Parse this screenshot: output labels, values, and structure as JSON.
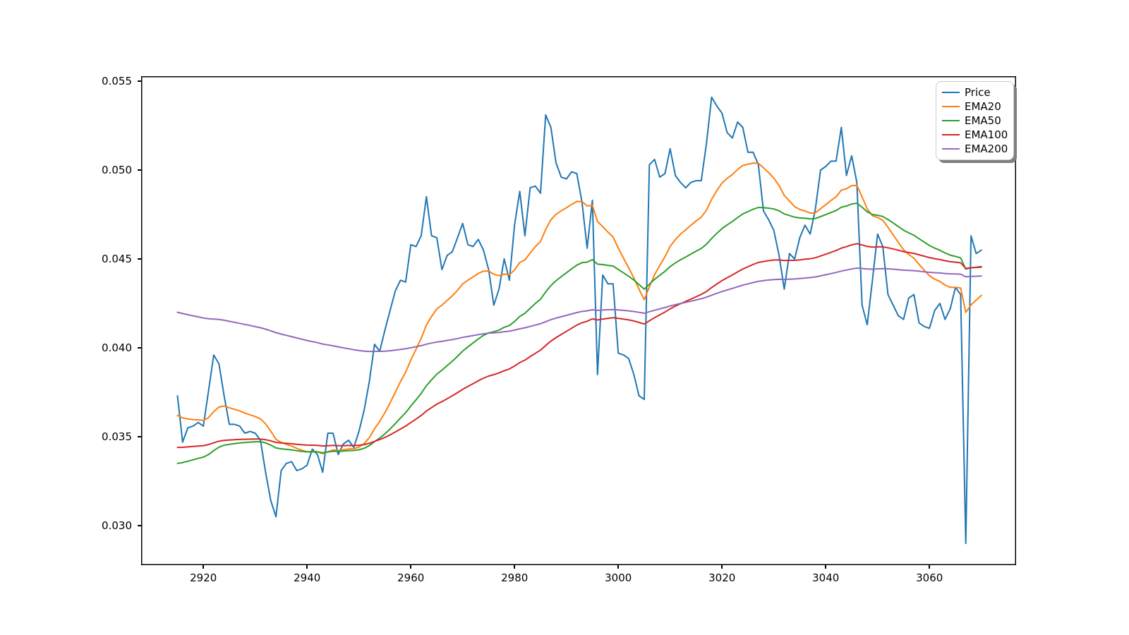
{
  "chart_data": {
    "type": "line",
    "x_start": 2915,
    "x_step": 1,
    "xlim": [
      2908.0,
      3076.7
    ],
    "ylim": [
      0.027778,
      0.055278
    ],
    "x_ticks": [
      2920,
      2940,
      2960,
      2980,
      3000,
      3020,
      3040,
      3060
    ],
    "x_tick_labels": [
      "2920",
      "2940",
      "2960",
      "2980",
      "3000",
      "3020",
      "3040",
      "3060"
    ],
    "y_ticks": [
      0.03,
      0.035,
      0.04,
      0.045,
      0.05,
      0.055
    ],
    "y_tick_labels": [
      "0.030",
      "0.035",
      "0.040",
      "0.045",
      "0.050",
      "0.055"
    ],
    "grid": false,
    "legend": {
      "position": "upper right"
    },
    "colors": {
      "background": "#ffffff",
      "axis": "#000000",
      "legend_border": "#cccccc",
      "legend_shadow": "#7f7f7f"
    },
    "series": [
      {
        "name": "Price",
        "color": "#1f77b4",
        "values": [
          0.0373,
          0.0347,
          0.0355,
          0.0356,
          0.0358,
          0.0356,
          0.0376,
          0.0396,
          0.0391,
          0.0373,
          0.0357,
          0.0357,
          0.0356,
          0.0352,
          0.0353,
          0.0352,
          0.0348,
          0.033,
          0.0314,
          0.0305,
          0.0331,
          0.0335,
          0.0336,
          0.0331,
          0.0332,
          0.0334,
          0.0343,
          0.034,
          0.033,
          0.0352,
          0.0352,
          0.034,
          0.0346,
          0.0348,
          0.0344,
          0.0353,
          0.0365,
          0.0381,
          0.0402,
          0.0398,
          0.041,
          0.0421,
          0.0432,
          0.0438,
          0.0437,
          0.0458,
          0.0457,
          0.0463,
          0.0485,
          0.0463,
          0.0462,
          0.0444,
          0.0452,
          0.0454,
          0.0462,
          0.047,
          0.0458,
          0.0457,
          0.0461,
          0.0455,
          0.0444,
          0.0424,
          0.0433,
          0.045,
          0.0438,
          0.0469,
          0.0488,
          0.0463,
          0.049,
          0.0491,
          0.0487,
          0.0531,
          0.0524,
          0.0504,
          0.0496,
          0.0495,
          0.0499,
          0.0498,
          0.0482,
          0.0456,
          0.0483,
          0.0385,
          0.0441,
          0.0436,
          0.0436,
          0.0397,
          0.0396,
          0.0394,
          0.0385,
          0.0373,
          0.0371,
          0.0503,
          0.0506,
          0.0496,
          0.0498,
          0.0512,
          0.0497,
          0.0493,
          0.049,
          0.0493,
          0.0494,
          0.0494,
          0.0515,
          0.0541,
          0.0536,
          0.0532,
          0.0521,
          0.0518,
          0.0527,
          0.0524,
          0.051,
          0.051,
          0.0503,
          0.0477,
          0.0472,
          0.0466,
          0.0452,
          0.0433,
          0.0453,
          0.045,
          0.0462,
          0.0469,
          0.0464,
          0.0478,
          0.05,
          0.0502,
          0.0505,
          0.0505,
          0.0524,
          0.0497,
          0.0508,
          0.0493,
          0.0424,
          0.0413,
          0.0438,
          0.0464,
          0.0457,
          0.043,
          0.0424,
          0.0418,
          0.0416,
          0.0428,
          0.043,
          0.0414,
          0.0412,
          0.0411,
          0.0421,
          0.0425,
          0.0416,
          0.0422,
          0.0434,
          0.043,
          0.029,
          0.0463,
          0.0453,
          0.0455
        ]
      },
      {
        "name": "EMA20",
        "color": "#ff7f0e",
        "derived": "ema_of_price",
        "period": 20,
        "seed": 0.0362
      },
      {
        "name": "EMA50",
        "color": "#2ca02c",
        "derived": "ema_of_price",
        "period": 50,
        "seed": 0.0335
      },
      {
        "name": "EMA100",
        "color": "#d62728",
        "derived": "ema_of_price",
        "period": 100,
        "seed": 0.0344
      },
      {
        "name": "EMA200",
        "color": "#9467bd",
        "derived": "ema_of_price",
        "period": 200,
        "seed": 0.042
      }
    ]
  }
}
